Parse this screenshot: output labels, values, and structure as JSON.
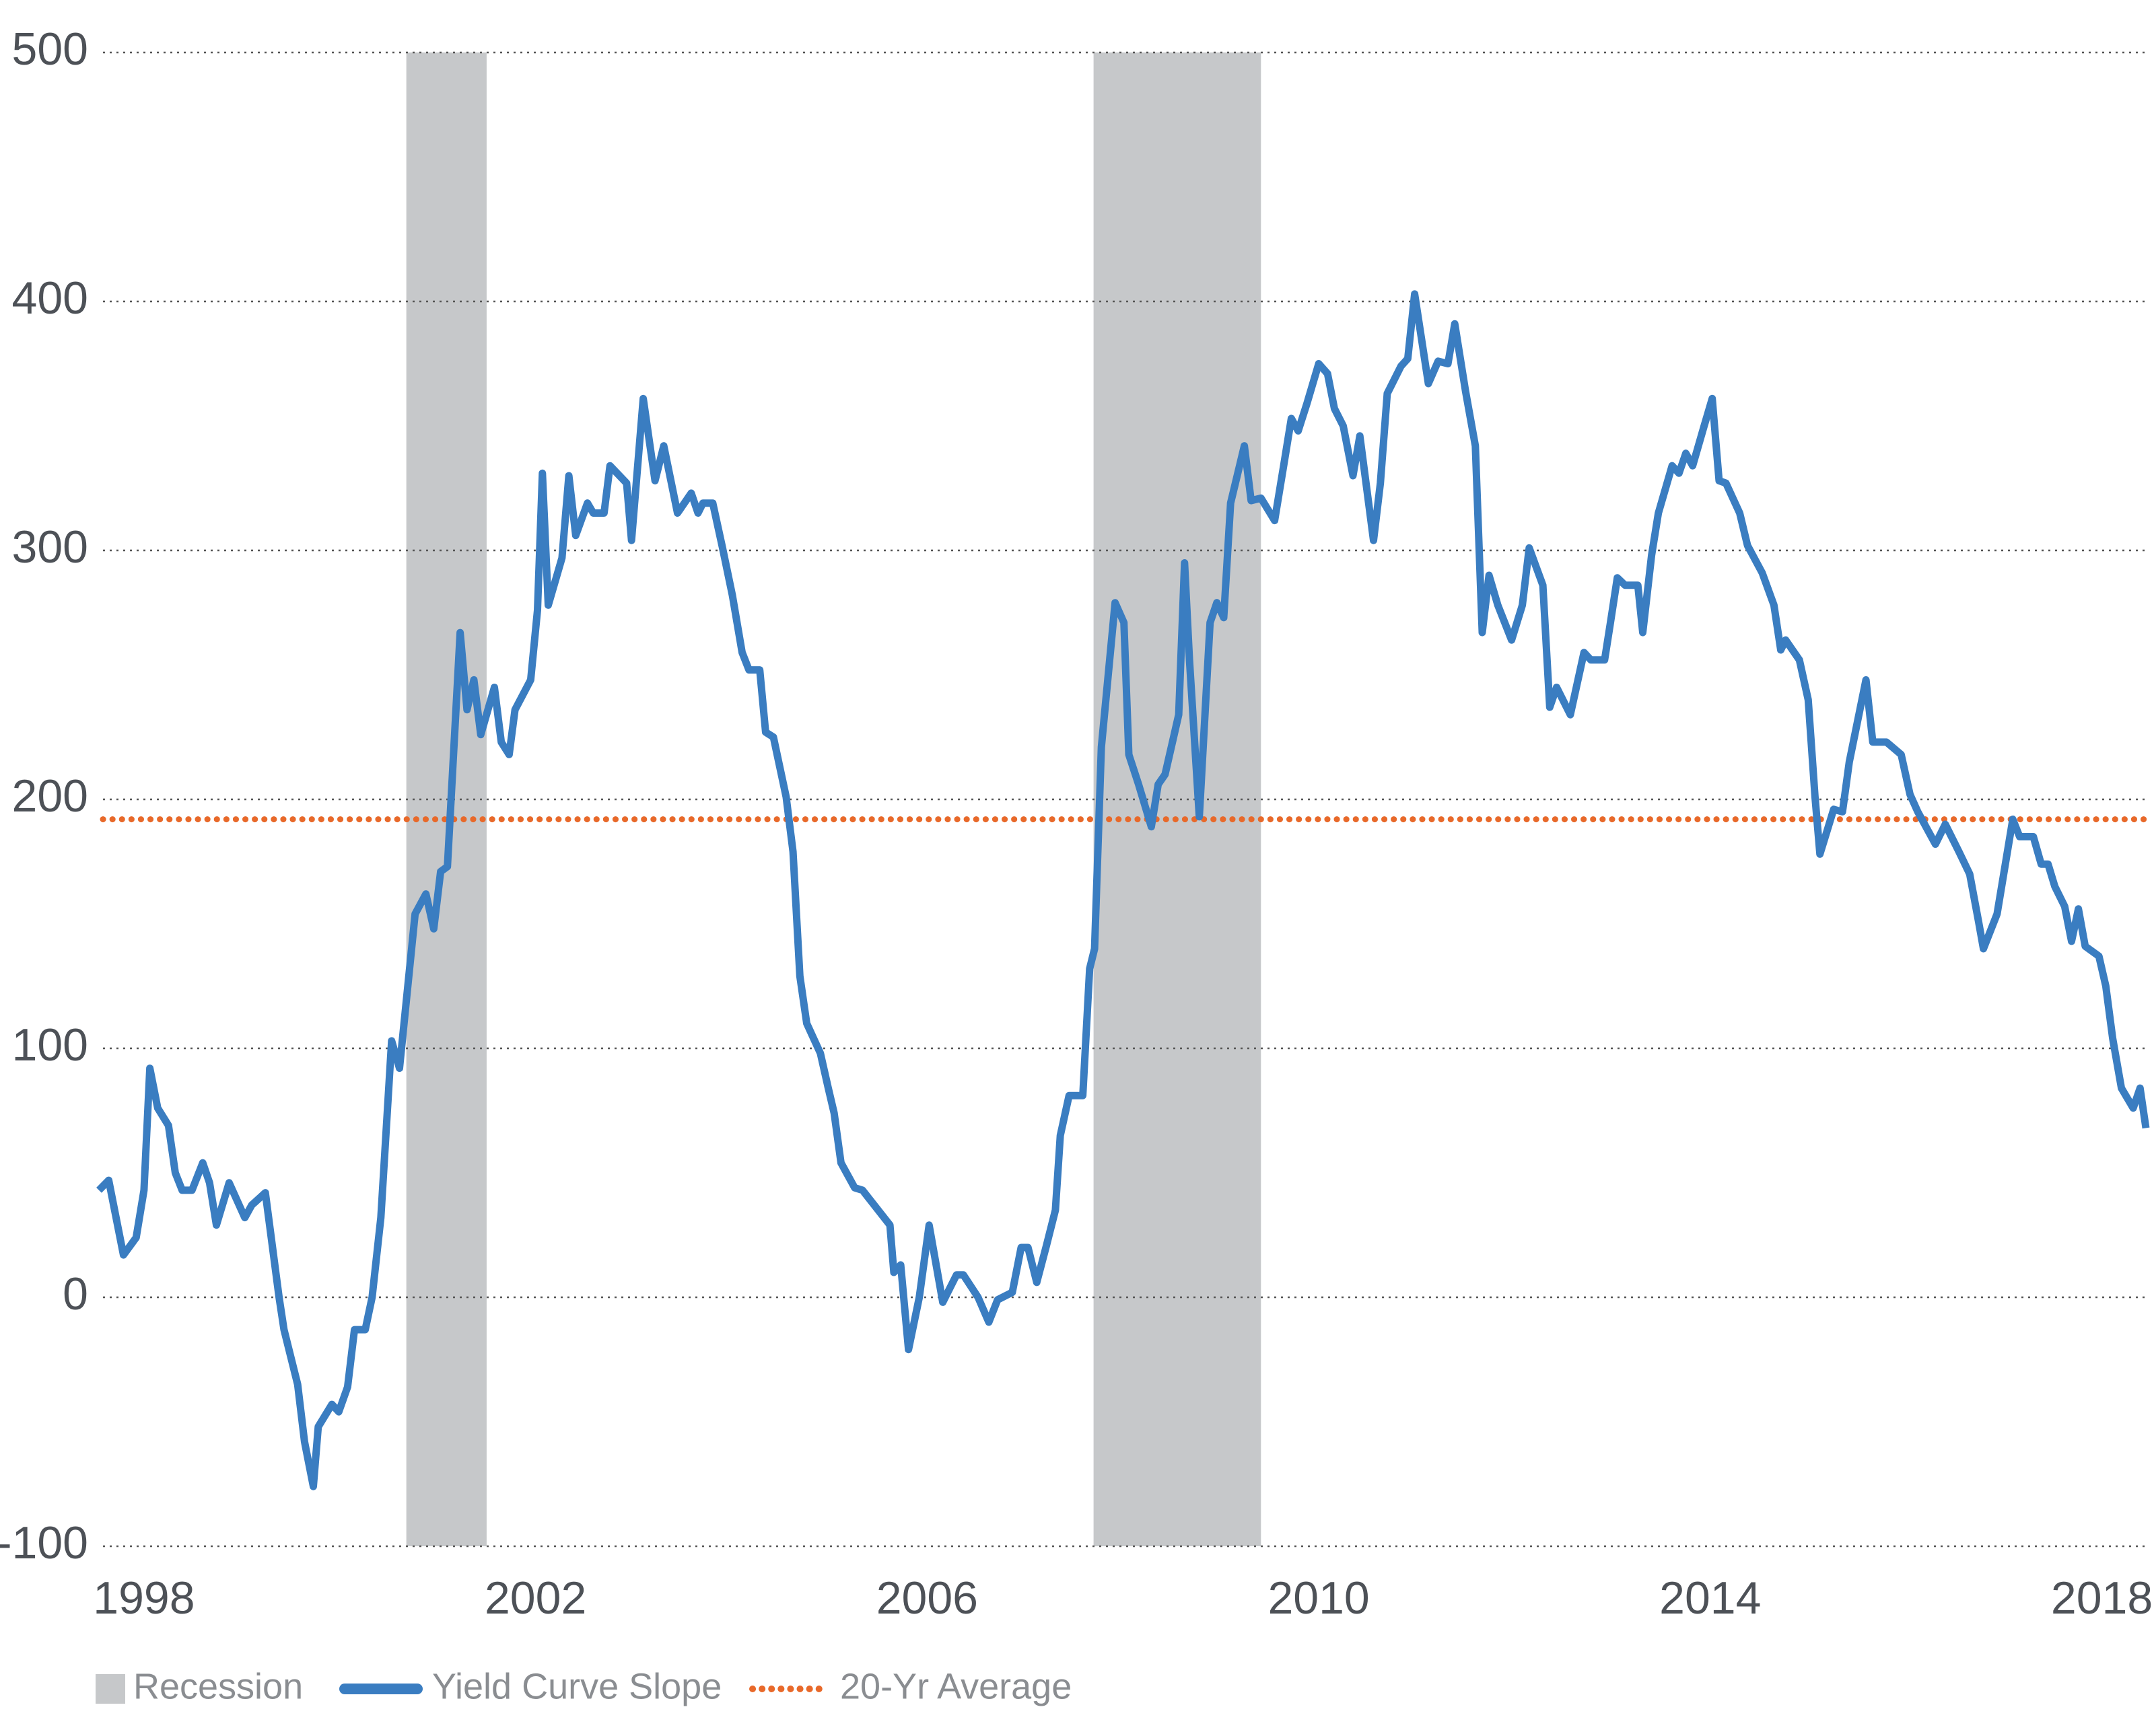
{
  "chart_data": {
    "type": "line",
    "x": [
      1997.54,
      1997.64,
      1997.79,
      1997.92,
      1998.0,
      1998.06,
      1998.14,
      1998.25,
      1998.32,
      1998.39,
      1998.49,
      1998.6,
      1998.67,
      1998.74,
      1998.87,
      1999.03,
      1999.1,
      1999.24,
      1999.38,
      1999.43,
      1999.57,
      1999.64,
      1999.73,
      1999.78,
      1999.92,
      1999.99,
      2000.08,
      2000.15,
      2000.26,
      2000.33,
      2000.42,
      2000.53,
      2000.61,
      2000.77,
      2000.88,
      2000.96,
      2001.03,
      2001.1,
      2001.23,
      2001.3,
      2001.37,
      2001.44,
      2001.58,
      2001.65,
      2001.73,
      2001.79,
      2001.95,
      2002.02,
      2002.07,
      2002.13,
      2002.27,
      2002.34,
      2002.41,
      2002.53,
      2002.59,
      2002.7,
      2002.76,
      2002.93,
      2002.98,
      2003.1,
      2003.22,
      2003.31,
      2003.45,
      2003.59,
      2003.66,
      2003.71,
      2003.81,
      2003.91,
      2004.01,
      2004.11,
      2004.18,
      2004.29,
      2004.35,
      2004.43,
      2004.56,
      2004.63,
      2004.7,
      2004.77,
      2004.91,
      2004.99,
      2005.05,
      2005.12,
      2005.26,
      2005.34,
      2005.62,
      2005.66,
      2005.73,
      2005.81,
      2005.92,
      2006.02,
      2006.16,
      2006.3,
      2006.37,
      2006.52,
      2006.63,
      2006.72,
      2006.87,
      2006.96,
      2007.03,
      2007.12,
      2007.22,
      2007.31,
      2007.36,
      2007.45,
      2007.59,
      2007.66,
      2007.71,
      2007.78,
      2007.92,
      2008.01,
      2008.06,
      2008.16,
      2008.29,
      2008.36,
      2008.43,
      2008.57,
      2008.63,
      2008.68,
      2008.78,
      2008.89,
      2008.96,
      2009.03,
      2009.1,
      2009.24,
      2009.31,
      2009.41,
      2009.55,
      2009.65,
      2009.72,
      2009.79,
      2009.88,
      2010.0,
      2010.09,
      2010.16,
      2010.25,
      2010.35,
      2010.42,
      2010.56,
      2010.63,
      2010.7,
      2010.84,
      2010.91,
      2010.98,
      2011.12,
      2011.22,
      2011.32,
      2011.39,
      2011.5,
      2011.6,
      2011.67,
      2011.74,
      2011.83,
      2011.97,
      2012.08,
      2012.15,
      2012.29,
      2012.36,
      2012.43,
      2012.57,
      2012.71,
      2012.78,
      2012.92,
      2012.98,
      2013.05,
      2013.13,
      2013.26,
      2013.31,
      2013.4,
      2013.47,
      2013.61,
      2013.68,
      2013.75,
      2013.82,
      2013.93,
      2014.02,
      2014.09,
      2014.16,
      2014.3,
      2014.38,
      2014.53,
      2014.65,
      2014.72,
      2014.77,
      2014.91,
      2015.0,
      2015.07,
      2015.12,
      2015.19,
      2015.26,
      2015.35,
      2015.42,
      2015.59,
      2015.66,
      2015.8,
      2015.95,
      2016.04,
      2016.12,
      2016.3,
      2016.4,
      2016.54,
      2016.65,
      2016.74,
      2016.79,
      2016.93,
      2017.09,
      2017.16,
      2017.3,
      2017.38,
      2017.45,
      2017.52,
      2017.62,
      2017.69,
      2017.76,
      2017.83,
      2017.97,
      2018.04,
      2018.11,
      2018.2,
      2018.32,
      2018.39,
      2018.45
    ],
    "series": [
      {
        "name": "Yield Curve Slope",
        "color": "#3a7dc1",
        "values": [
          43,
          47,
          17,
          24,
          43,
          92,
          76,
          69,
          50,
          43,
          43,
          54,
          46,
          29,
          46,
          32,
          37,
          42,
          0,
          -13,
          -35,
          -58,
          -76,
          -52,
          -43,
          -46,
          -36,
          -13,
          -13,
          0,
          32,
          103,
          92,
          154,
          162,
          148,
          171,
          173,
          267,
          236,
          248,
          226,
          245,
          223,
          218,
          236,
          248,
          276,
          331,
          278,
          297,
          330,
          306,
          319,
          315,
          315,
          334,
          327,
          304,
          361,
          328,
          342,
          315,
          323,
          315,
          319,
          319,
          301,
          282,
          259,
          252,
          252,
          227,
          225,
          201,
          179,
          129,
          110,
          98,
          84,
          74,
          54,
          44,
          43,
          29,
          10,
          13,
          -21,
          0,
          29,
          -2,
          9,
          9,
          0,
          -10,
          -1,
          2,
          20,
          20,
          6,
          21,
          35,
          65,
          81,
          81,
          132,
          140,
          221,
          279,
          271,
          218,
          206,
          189,
          206,
          210,
          234,
          295,
          256,
          193,
          271,
          279,
          273,
          319,
          342,
          320,
          321,
          312,
          336,
          353,
          348,
          359,
          375,
          371,
          357,
          350,
          330,
          346,
          304,
          327,
          363,
          374,
          377,
          403,
          367,
          376,
          375,
          391,
          364,
          342,
          267,
          290,
          278,
          264,
          278,
          301,
          286,
          237,
          245,
          234,
          259,
          256,
          256,
          271,
          289,
          286,
          286,
          267,
          298,
          315,
          334,
          331,
          339,
          334,
          349,
          361,
          328,
          327,
          315,
          302,
          291,
          278,
          260,
          264,
          256,
          240,
          201,
          178,
          187,
          196,
          195,
          215,
          248,
          223,
          223,
          218,
          202,
          195,
          182,
          190,
          179,
          170,
          151,
          140,
          154,
          192,
          185,
          185,
          174,
          174,
          165,
          157,
          143,
          156,
          141,
          137,
          125,
          104,
          84,
          76,
          84,
          68
        ]
      }
    ],
    "recession": {
      "name": "Recession",
      "color": "#c6c8ca",
      "periods": [
        {
          "start": 2000.68,
          "end": 2001.5
        },
        {
          "start": 2007.7,
          "end": 2009.41
        }
      ]
    },
    "average": {
      "name": "20-Yr Average",
      "value": 192,
      "color": "#e8692a"
    },
    "xlim": [
      1997.54,
      2018.45
    ],
    "xticks": [
      1998,
      2002,
      2006,
      2010,
      2014,
      2018
    ],
    "ylim": [
      -100,
      500
    ],
    "yticks": [
      -100,
      0,
      100,
      200,
      300,
      400,
      500
    ],
    "grid": true
  }
}
